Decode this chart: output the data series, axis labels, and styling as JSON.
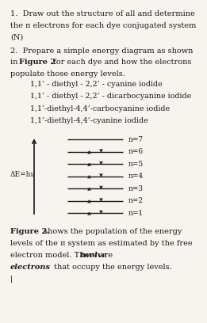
{
  "background_color": "#f7f3ee",
  "text_color": "#1a1a1a",
  "line_color": "#1a1a1a",
  "fig_width": 2.61,
  "fig_height": 4.08,
  "dpi": 100,
  "para1_lines": [
    "1.  Draw out the structure of all and determine",
    "the π electrons for each dye conjugated system",
    "(N)"
  ],
  "para2_line1": "2.  Prepare a simple energy diagram as shown",
  "para2_line2_prefix": "in ",
  "para2_line2_bold": "Figure 2",
  "para2_line2_suffix": " for each dye and how the electrons",
  "para2_line3": "populate those energy levels.",
  "dye_list": [
    "1,1’ - diethyl - 2,2’ - cyanine iodide",
    "1,1’ - diethyl - 2,2’ - dicarbocyanine iodide",
    "1,1’-diethyl-4,4’-carbocyanine iodide",
    "1,1’-diethyl-4,4’-cyanine iodide"
  ],
  "energy_levels": [
    1,
    2,
    3,
    4,
    5,
    6,
    7
  ],
  "filled_levels": [
    1,
    2,
    3,
    4,
    5,
    6
  ],
  "cap_bold1": "Figure 2.",
  "cap_normal1": " shows the population of the energy",
  "cap_line2": "levels of the π system as estimated by the free",
  "cap_line3_pre": "electron model. There are ",
  "cap_line3_bold": "twelve",
  "cap_line4_bold": "electrons",
  "cap_line4_suf": " that occupy the energy levels.",
  "cap_line5": "|",
  "arrow_label": "ΔE=hν",
  "txt_fs": 7.0,
  "dye_fs": 6.8,
  "cap_fs": 7.0,
  "nlabel_fs": 6.5
}
